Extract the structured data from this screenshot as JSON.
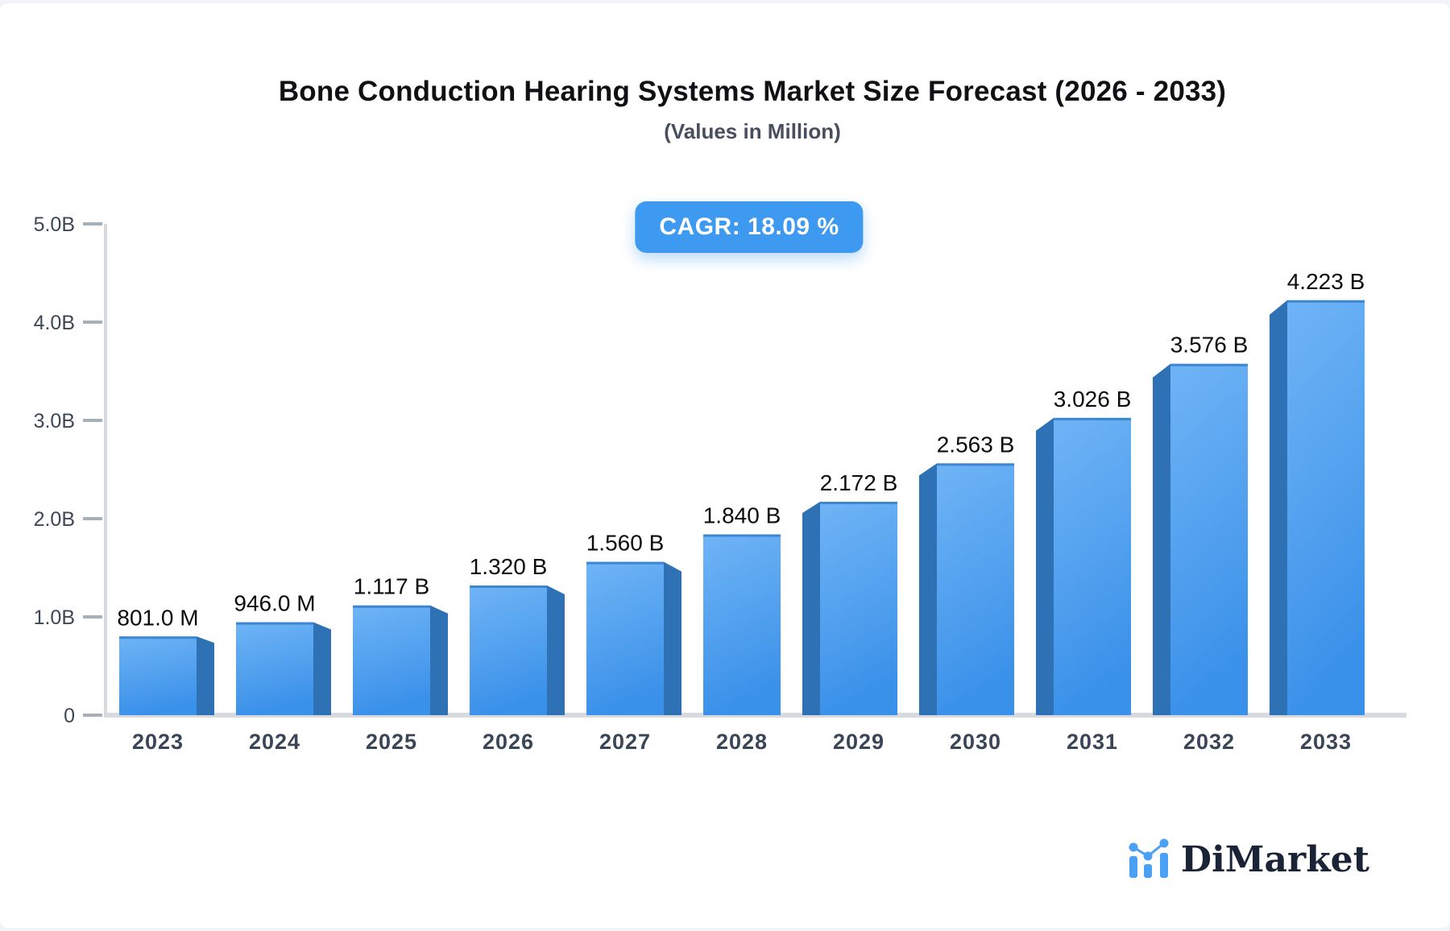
{
  "header": {
    "title": "Bone Conduction Hearing Systems Market Size Forecast (2026 - 2033)",
    "subtitle": "(Values in Million)",
    "cagr_badge": "CAGR: 18.09 %"
  },
  "logo": {
    "text": "DiMarket",
    "icon": "dimarket-bars-icon",
    "icon_color": "#4aa0f4",
    "text_color": "#1b2336"
  },
  "colors": {
    "page_background": "#f2f4f7",
    "card_background": "#ffffff",
    "badge_background": "#3e9af0",
    "bar_face_top": "#70b4f6",
    "bar_face_bottom": "#3a91e9",
    "bar_face_edge": "#3c86d2",
    "bar_side": "#2e71b4",
    "axis_line": "#d6dade",
    "tick_dash": "#a7afb9",
    "tick_label": "#3d4856",
    "year_label": "#3a4557",
    "value_label": "#0c0d0f"
  },
  "chart_data": {
    "type": "bar",
    "title": "Bone Conduction Hearing Systems Market Size Forecast (2026 - 2033)",
    "subtitle": "(Values in Million)",
    "annotation": "CAGR: 18.09 %",
    "categories": [
      "2023",
      "2024",
      "2025",
      "2026",
      "2027",
      "2028",
      "2029",
      "2030",
      "2031",
      "2032",
      "2033"
    ],
    "values_billions": [
      0.801,
      0.946,
      1.117,
      1.32,
      1.56,
      1.84,
      2.172,
      2.563,
      3.026,
      3.576,
      4.223
    ],
    "value_labels": [
      "801.0 M",
      "946.0 M",
      "1.117 B",
      "1.320 B",
      "1.560 B",
      "1.840 B",
      "2.172 B",
      "2.563 B",
      "3.026 B",
      "3.576 B",
      "4.223 B"
    ],
    "xlabel": "",
    "ylabel": "",
    "y_ticks": [
      "0",
      "1.0B",
      "2.0B",
      "3.0B",
      "4.0B",
      "5.0B"
    ],
    "ylim": [
      0,
      5
    ],
    "grid": false,
    "legend": false,
    "style": "3d-perspective-bars"
  }
}
